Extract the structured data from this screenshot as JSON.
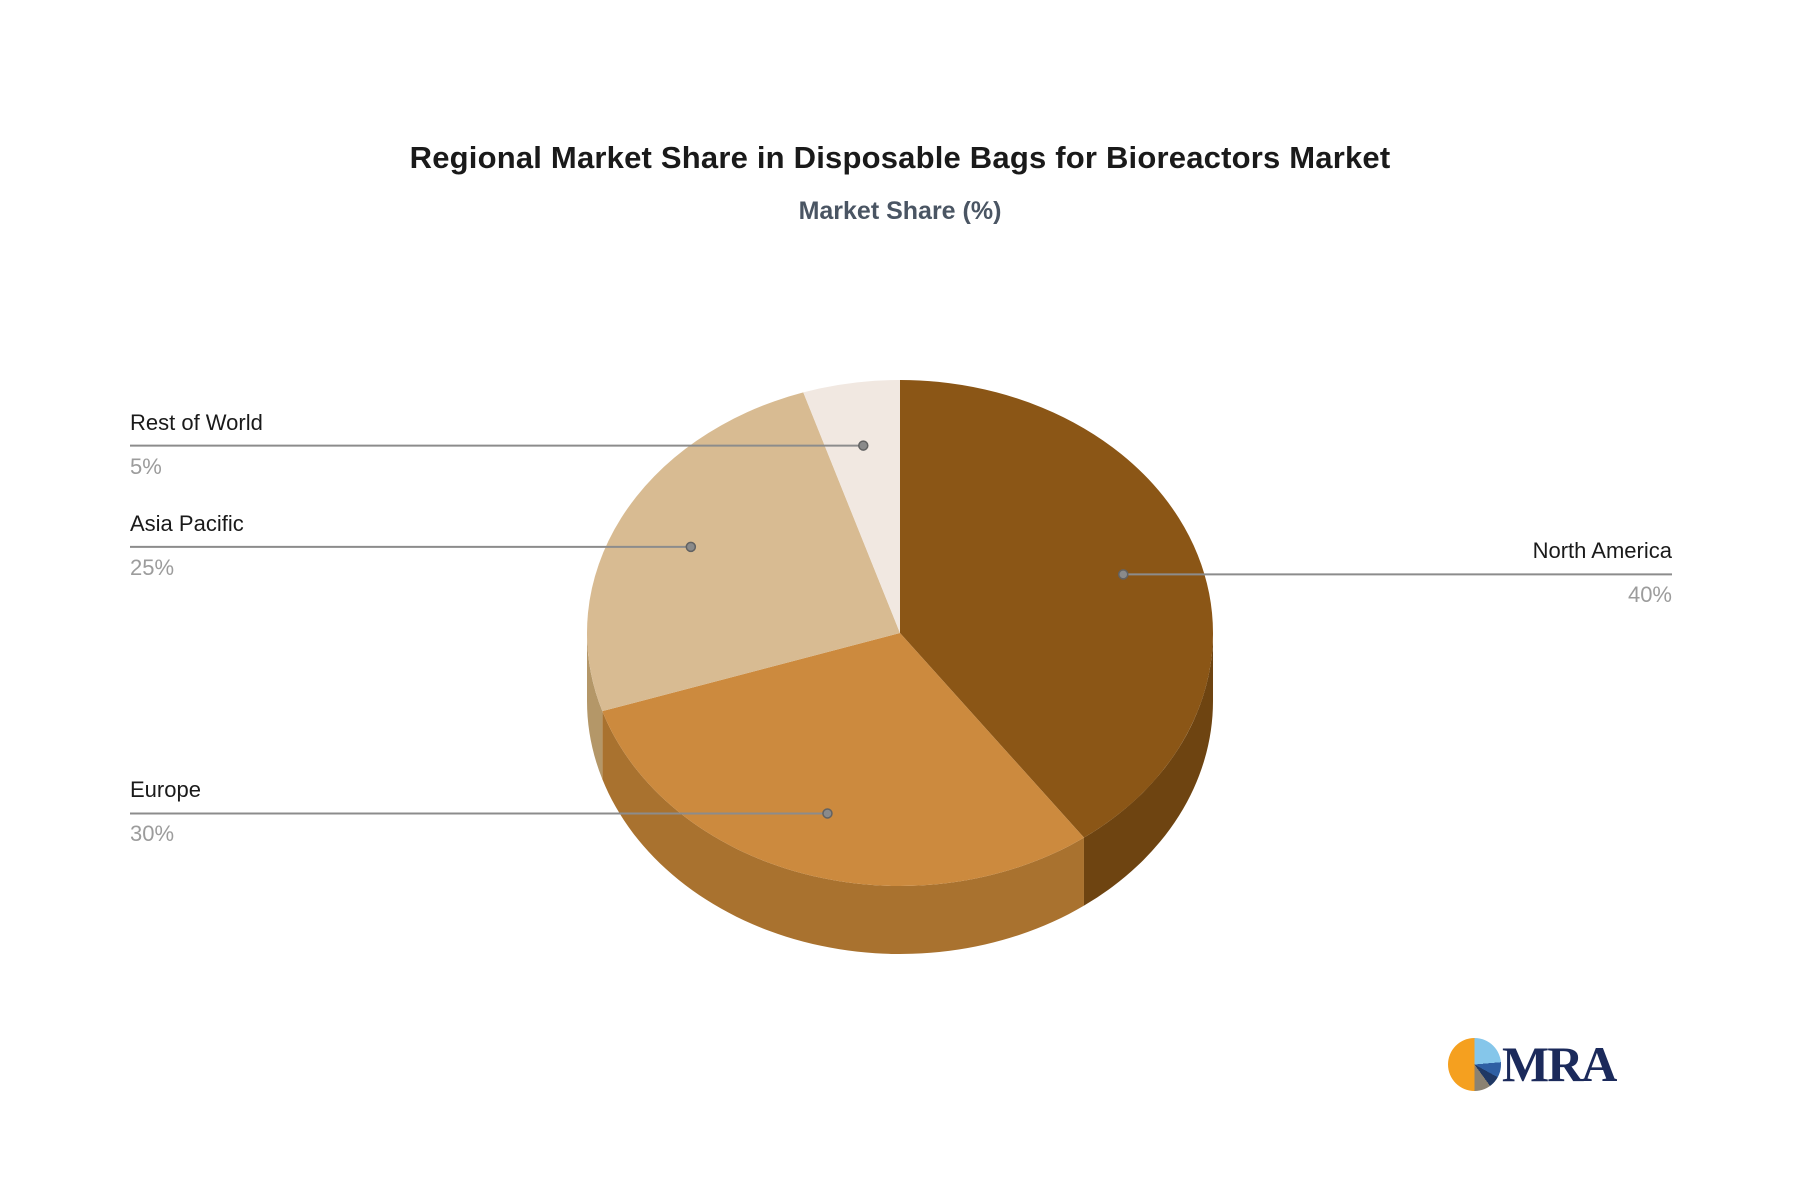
{
  "title": "Regional Market Share in Disposable Bags for Bioreactors Market",
  "subtitle": "Market Share (%)",
  "chart_data": {
    "type": "pie",
    "title": "Regional Market Share in Disposable Bags for Bioreactors Market",
    "subtitle": "Market Share (%)",
    "effect_3d": true,
    "start_angle": "12 o'clock",
    "direction": "clockwise",
    "legend_position": "none",
    "slices": [
      {
        "label": "North America",
        "value": 40,
        "display": "40%",
        "color": "#8b5616",
        "side_color": "#6e4411",
        "label_side": "right"
      },
      {
        "label": "Europe",
        "value": 30,
        "display": "30%",
        "color": "#cc8a3e",
        "side_color": "#a9722f",
        "label_side": "left"
      },
      {
        "label": "Asia Pacific",
        "value": 25,
        "display": "25%",
        "color": "#d8bb92",
        "side_color": "#b49768",
        "label_side": "left"
      },
      {
        "label": "Rest of World",
        "value": 5,
        "display": "5%",
        "color": "#f1e8e1",
        "side_color": "#d4c7bc",
        "label_side": "left"
      }
    ]
  },
  "colors": {
    "background": "#ffffff",
    "leader_line": "#8c8c8c",
    "leader_dot": "#8a8a8a",
    "name_text": "#1a1a1a",
    "percent_text": "#9c9c9c",
    "title_text": "#1a1a1a",
    "subtitle_text": "#4a5563"
  },
  "logo": {
    "text": "MRA",
    "icon": "pie-chart-icon",
    "icon_colors": [
      "#f5a01f",
      "#85c6ea",
      "#2e5fa3",
      "#1f3864",
      "#8b8272"
    ],
    "text_color": "#1b2a5b"
  }
}
